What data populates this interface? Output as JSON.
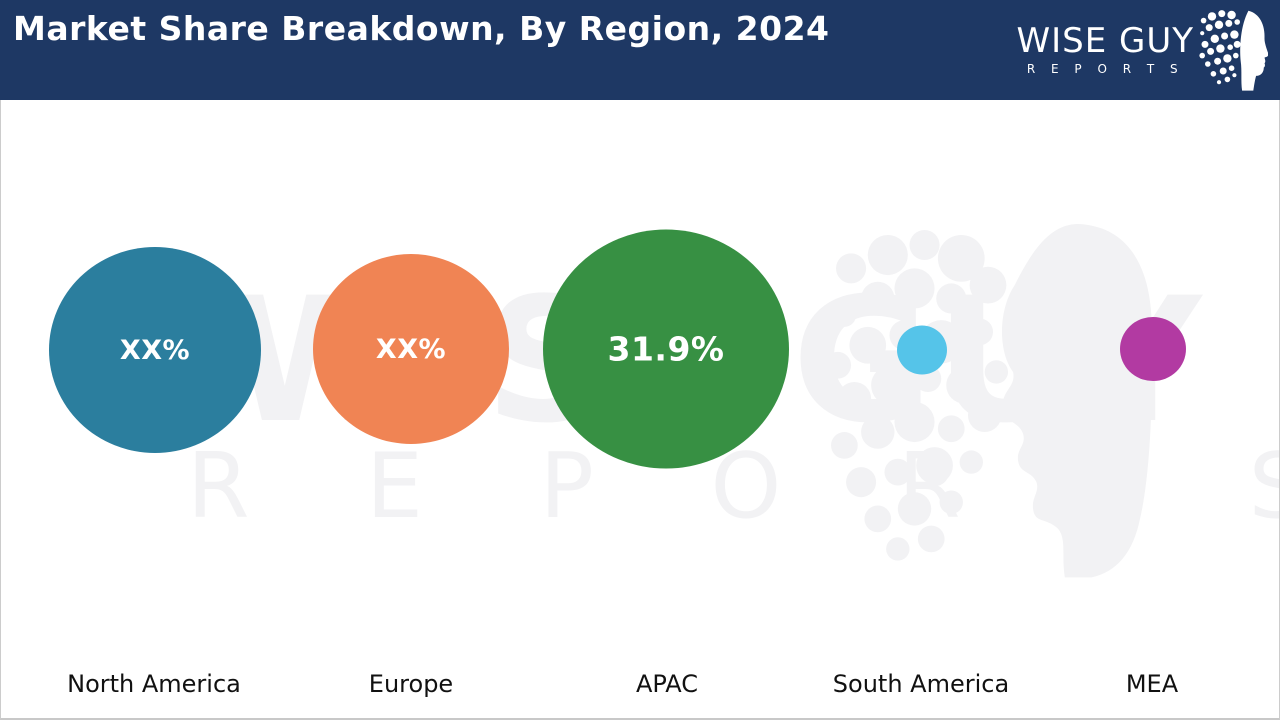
{
  "header": {
    "title": "Market Share Breakdown, By Region, 2024",
    "logo": {
      "line1": "WISE GUY",
      "line2": "R E P O R T S"
    }
  },
  "watermark": {
    "line1": "WISE GUY",
    "line2": "R E P O R T S"
  },
  "chart_data": {
    "type": "bubble",
    "title": "Market Share Breakdown, By Region, 2024",
    "categories": [
      "North America",
      "Europe",
      "APAC",
      "South America",
      "MEA"
    ],
    "value_labels": [
      "XX%",
      "XX%",
      "31.9%",
      "",
      ""
    ],
    "share_percent": [
      null,
      null,
      31.9,
      null,
      null
    ],
    "bubble_radius_px": [
      106,
      98,
      123,
      25,
      33
    ],
    "colors": [
      "#2b7e9e",
      "#f08454",
      "#379043",
      "#55c4e9",
      "#b23aa2"
    ],
    "legend_position": "none",
    "grid": false
  },
  "colors": {
    "header_bg": "#1e3864",
    "content_border": "#cccccc",
    "label_text": "#111111",
    "bubble_label_text": "#ffffff",
    "watermark": "#f2f2f4",
    "logo_text": "#ffffff"
  }
}
